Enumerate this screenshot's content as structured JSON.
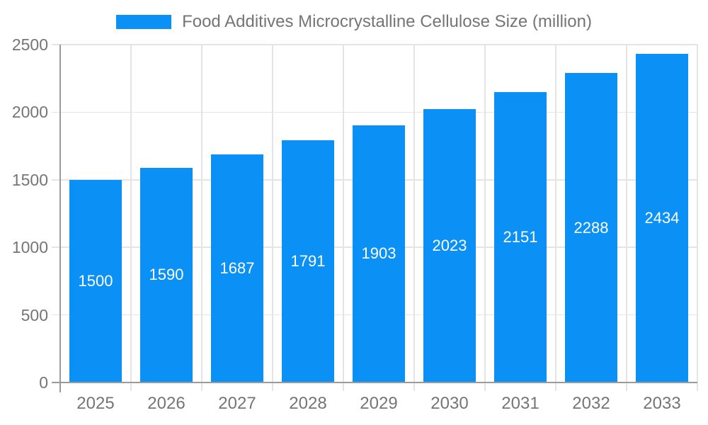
{
  "chart_data": {
    "type": "bar",
    "title": "Food Additives Microcrystalline Cellulose Size (million)",
    "categories": [
      "2025",
      "2026",
      "2027",
      "2028",
      "2029",
      "2030",
      "2031",
      "2032",
      "2033"
    ],
    "values": [
      1500,
      1590,
      1687,
      1791,
      1903,
      2023,
      2151,
      2288,
      2434
    ],
    "xlabel": "",
    "ylabel": "",
    "ylim": [
      0,
      2500
    ],
    "y_ticks": [
      0,
      500,
      1000,
      1500,
      2000,
      2500
    ],
    "grid": true,
    "legend_position": "top",
    "bar_color": "#0b90f5",
    "value_label_color": "#ffffff",
    "text_color": "#757575",
    "grid_color": "#e4e4e4",
    "axis_line_color": "#9a9a9a",
    "background": "#ffffff"
  }
}
